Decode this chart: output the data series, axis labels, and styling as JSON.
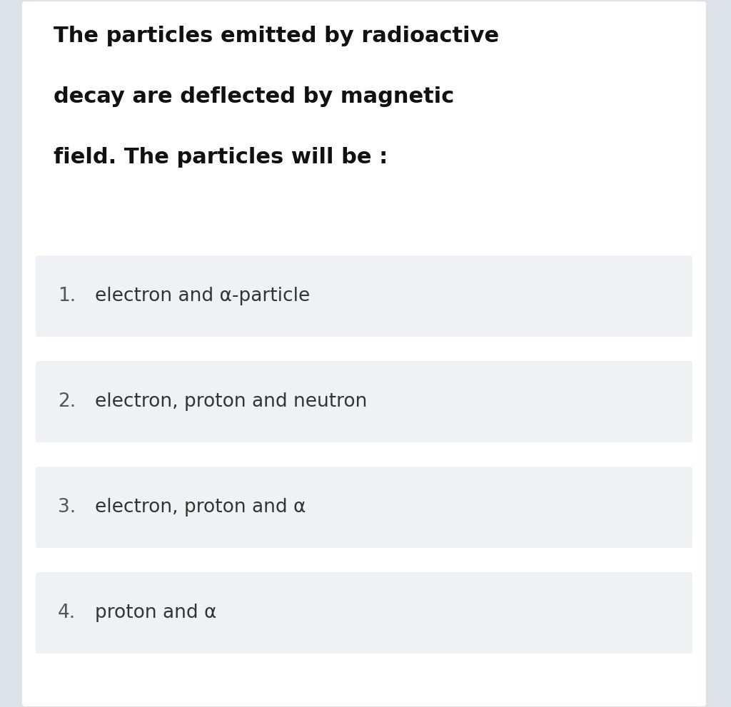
{
  "background_color": "#ffffff",
  "outer_bg_color": "#dde1e8",
  "title_lines": [
    "The particles emitted by radioactive",
    "decay are deflected by magnetic",
    "field. The particles will be :"
  ],
  "title_color": "#111111",
  "title_fontsize": 22,
  "title_fontweight": "bold",
  "options": [
    {
      "number": "1.",
      "text": "electron and α-particle"
    },
    {
      "number": "2.",
      "text": "electron, proton and neutron"
    },
    {
      "number": "3.",
      "text": "electron, proton and α"
    },
    {
      "number": "4.",
      "text": "proton and α"
    }
  ],
  "option_bg_color": "#eff1f4",
  "option_text_color": "#333333",
  "option_number_color": "#555555",
  "option_fontsize": 19,
  "option_number_fontsize": 19,
  "fig_width": 10.24,
  "fig_height": 9.91,
  "dpi": 100
}
